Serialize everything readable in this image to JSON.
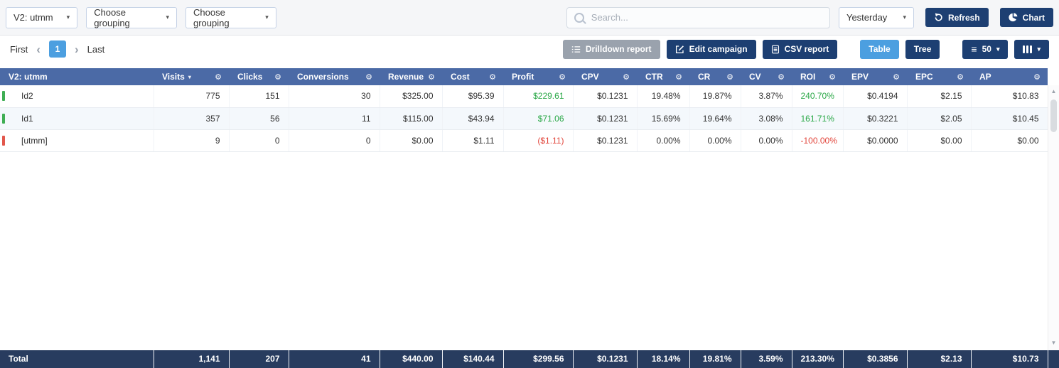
{
  "toolbar": {
    "campaign_select_value": "V2: utmm",
    "grouping_select_1": "Choose grouping",
    "grouping_select_2": "Choose grouping",
    "search_placeholder": "Search...",
    "date_range_value": "Yesterday",
    "refresh_label": "Refresh",
    "chart_label": "Chart"
  },
  "pagination": {
    "first_label": "First",
    "current_page": "1",
    "last_label": "Last"
  },
  "actions": {
    "drilldown_label": "Drilldown report",
    "edit_campaign_label": "Edit campaign",
    "csv_label": "CSV report",
    "table_label": "Table",
    "tree_label": "Tree",
    "page_size": "50"
  },
  "icons": {
    "caret_down": "▾",
    "sort_desc": "▾",
    "gear": "⚙",
    "prev_chevron": "‹",
    "next_chevron": "›",
    "hamburger": "≡",
    "scroll_up": "▲",
    "scroll_down": "▼"
  },
  "colors": {
    "table_header_bg": "#4b6aa6",
    "total_row_bg": "#283c5f",
    "navy_button": "#1d3f72",
    "accent_blue": "#4c9fe0",
    "positive": "#28a745",
    "negative": "#e2463c",
    "positive_on_dark": "#3fd96d",
    "status_green": "#3fae54",
    "status_red": "#e2574c"
  },
  "table": {
    "columns": [
      {
        "key": "name",
        "label": "V2: utmm",
        "gear": false,
        "sort": false
      },
      {
        "key": "visits",
        "label": "Visits",
        "gear": true,
        "sort": true
      },
      {
        "key": "clicks",
        "label": "Clicks",
        "gear": true,
        "sort": false
      },
      {
        "key": "conversions",
        "label": "Conversions",
        "gear": true,
        "sort": false
      },
      {
        "key": "revenue",
        "label": "Revenue",
        "gear": true,
        "sort": false
      },
      {
        "key": "cost",
        "label": "Cost",
        "gear": true,
        "sort": false
      },
      {
        "key": "profit",
        "label": "Profit",
        "gear": true,
        "sort": false
      },
      {
        "key": "cpv",
        "label": "CPV",
        "gear": true,
        "sort": false
      },
      {
        "key": "ctr",
        "label": "CTR",
        "gear": true,
        "sort": false
      },
      {
        "key": "cr",
        "label": "CR",
        "gear": true,
        "sort": false
      },
      {
        "key": "cv",
        "label": "CV",
        "gear": true,
        "sort": false
      },
      {
        "key": "roi",
        "label": "ROI",
        "gear": true,
        "sort": false
      },
      {
        "key": "epv",
        "label": "EPV",
        "gear": true,
        "sort": false
      },
      {
        "key": "epc",
        "label": "EPC",
        "gear": true,
        "sort": false
      },
      {
        "key": "ap",
        "label": "AP",
        "gear": true,
        "sort": false
      }
    ],
    "rows": [
      {
        "status": "green",
        "name": "Id2",
        "values": [
          "775",
          "151",
          "30",
          "$325.00",
          "$95.39",
          "$229.61",
          "$0.1231",
          "19.48%",
          "19.87%",
          "3.87%",
          "240.70%",
          "$0.4194",
          "$2.15",
          "$10.83"
        ],
        "value_colors": {
          "5": "pos",
          "10": "pos"
        }
      },
      {
        "status": "green",
        "name": "Id1",
        "values": [
          "357",
          "56",
          "11",
          "$115.00",
          "$43.94",
          "$71.06",
          "$0.1231",
          "15.69%",
          "19.64%",
          "3.08%",
          "161.71%",
          "$0.3221",
          "$2.05",
          "$10.45"
        ],
        "value_colors": {
          "5": "pos",
          "10": "pos"
        }
      },
      {
        "status": "red",
        "name": "[utmm]",
        "values": [
          "9",
          "0",
          "0",
          "$0.00",
          "$1.11",
          "($1.11)",
          "$0.1231",
          "0.00%",
          "0.00%",
          "0.00%",
          "-100.00%",
          "$0.0000",
          "$0.00",
          "$0.00"
        ],
        "value_colors": {
          "5": "neg",
          "10": "neg"
        }
      }
    ],
    "total": {
      "name": "Total",
      "values": [
        "1,141",
        "207",
        "41",
        "$440.00",
        "$140.44",
        "$299.56",
        "$0.1231",
        "18.14%",
        "19.81%",
        "3.59%",
        "213.30%",
        "$0.3856",
        "$2.13",
        "$10.73"
      ],
      "value_colors": {
        "5": "pos",
        "10": "pos"
      }
    }
  }
}
